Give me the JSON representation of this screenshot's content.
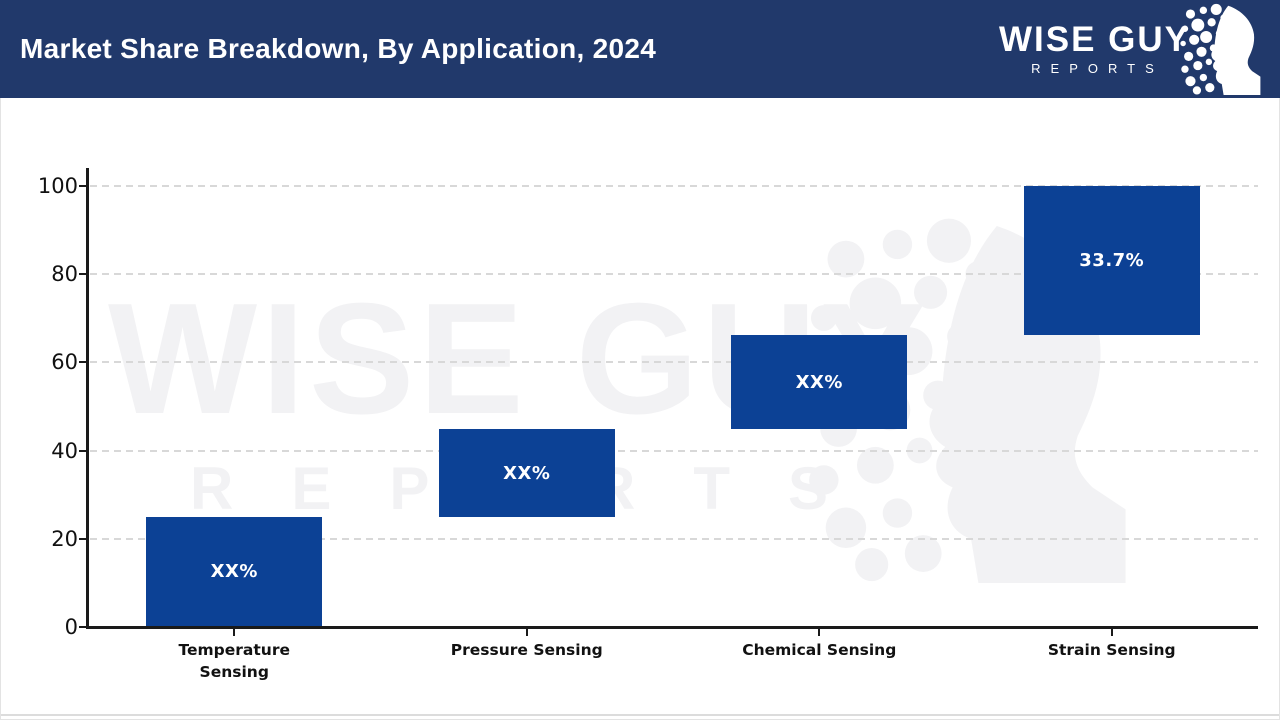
{
  "header": {
    "title": "Market Share Breakdown, By Application, 2024",
    "logo": {
      "line1": "WISE GUY",
      "line2": "REPORTS"
    }
  },
  "watermark": {
    "line1": "WISE GUY",
    "line2": "REPORTS"
  },
  "chart_data": {
    "type": "bar",
    "subtype": "waterfall",
    "title": "Market Share Breakdown, By Application, 2024",
    "categories": [
      "Temperature\nSensing",
      "Pressure Sensing",
      "Chemical Sensing",
      "Strain Sensing"
    ],
    "bars": [
      {
        "category": "Temperature Sensing",
        "start": 0,
        "end": 25,
        "label": "XX%"
      },
      {
        "category": "Pressure Sensing",
        "start": 25,
        "end": 44.8,
        "label": "XX%"
      },
      {
        "category": "Chemical Sensing",
        "start": 44.8,
        "end": 66.3,
        "label": "XX%"
      },
      {
        "category": "Strain Sensing",
        "start": 66.3,
        "end": 100,
        "label": "33.7%"
      }
    ],
    "yticks": [
      0,
      20,
      40,
      60,
      80,
      100
    ],
    "ylim": [
      0,
      104
    ],
    "xlabel": "",
    "ylabel": "",
    "legend": "none",
    "grid": "horizontal-dashed"
  },
  "colors": {
    "header_bg": "#21396b",
    "bar": "#0c4195",
    "bar_label": "#ffffff",
    "grid": "#d8d8d8",
    "axis": "#1a1a1a",
    "watermark": "#f2f2f4",
    "page_bg": "#ffffff"
  }
}
